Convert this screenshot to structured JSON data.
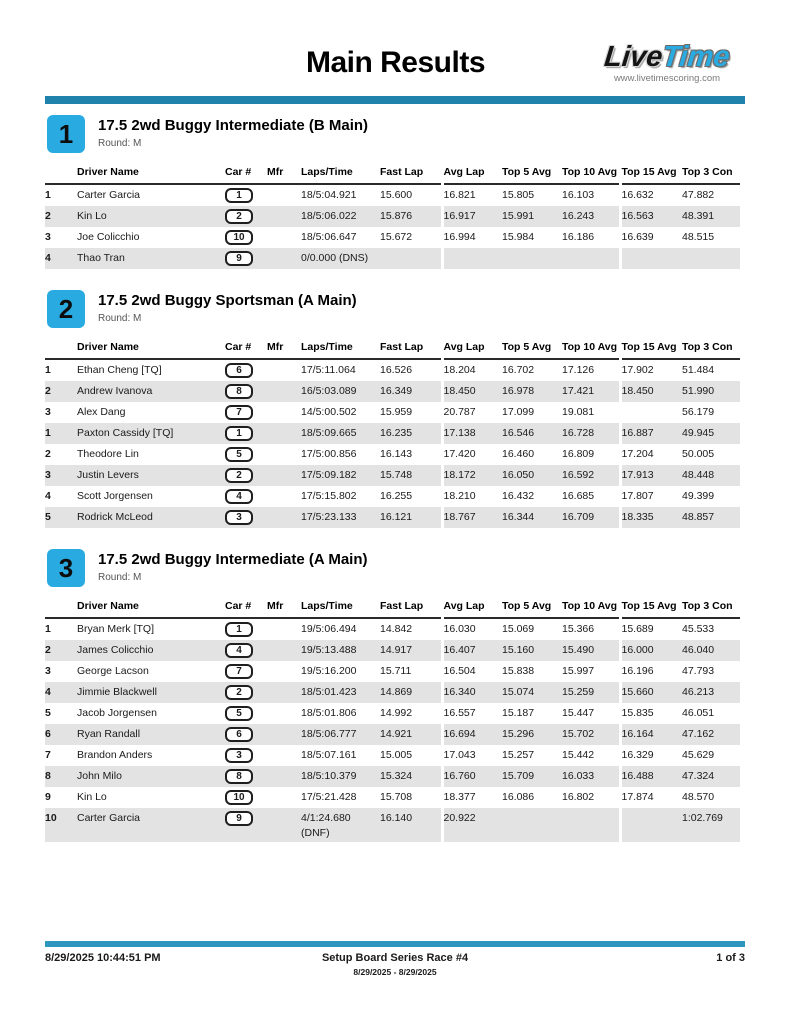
{
  "page": {
    "title": "Main Results",
    "logo": {
      "live": "Live",
      "time": "Time",
      "url": "www.livetimescoring.com"
    },
    "footer": {
      "timestamp": "8/29/2025 10:44:51 PM",
      "event": "Setup Board Series Race #4",
      "dates": "8/29/2025 - 8/29/2025",
      "page_number": "1 of 3"
    }
  },
  "colors": {
    "accent": "#29ABE2",
    "bar": "#1E82AC",
    "footer_bar": "#2E96BE",
    "row_shade": "#E3E3E3"
  },
  "columns": [
    "Driver Name",
    "Car #",
    "Mfr",
    "Laps/Time",
    "Fast Lap",
    "Avg Lap",
    "Top 5 Avg",
    "Top 10 Avg",
    "Top 15 Avg",
    "Top 3 Con"
  ],
  "sections": [
    {
      "number": "1",
      "title": "17.5 2wd Buggy Intermediate (B Main)",
      "round_label": "Round:",
      "round_value": "M",
      "rows": [
        {
          "pos": "1",
          "driver": "Carter Garcia",
          "car": "1",
          "mfr": "",
          "laps_time": "18/5:04.921",
          "fast": "15.600",
          "avg": "16.821",
          "top5": "15.805",
          "top10": "16.103",
          "top15": "16.632",
          "top3con": "47.882"
        },
        {
          "pos": "2",
          "driver": "Kin Lo",
          "car": "2",
          "mfr": "",
          "laps_time": "18/5:06.022",
          "fast": "15.876",
          "avg": "16.917",
          "top5": "15.991",
          "top10": "16.243",
          "top15": "16.563",
          "top3con": "48.391"
        },
        {
          "pos": "3",
          "driver": "Joe Colicchio",
          "car": "10",
          "mfr": "",
          "laps_time": "18/5:06.647",
          "fast": "15.672",
          "avg": "16.994",
          "top5": "15.984",
          "top10": "16.186",
          "top15": "16.639",
          "top3con": "48.515"
        },
        {
          "pos": "4",
          "driver": "Thao Tran",
          "car": "9",
          "mfr": "",
          "laps_time": "0/0.000 (DNS)",
          "fast": "",
          "avg": "",
          "top5": "",
          "top10": "",
          "top15": "",
          "top3con": ""
        }
      ]
    },
    {
      "number": "2",
      "title": "17.5 2wd Buggy Sportsman  (A Main)",
      "round_label": "Round:",
      "round_value": "M",
      "rows": [
        {
          "pos": "1",
          "driver": "Ethan Cheng [TQ]",
          "car": "6",
          "mfr": "",
          "laps_time": "17/5:11.064",
          "fast": "16.526",
          "avg": "18.204",
          "top5": "16.702",
          "top10": "17.126",
          "top15": "17.902",
          "top3con": "51.484"
        },
        {
          "pos": "2",
          "driver": "Andrew Ivanova",
          "car": "8",
          "mfr": "",
          "laps_time": "16/5:03.089",
          "fast": "16.349",
          "avg": "18.450",
          "top5": "16.978",
          "top10": "17.421",
          "top15": "18.450",
          "top3con": "51.990"
        },
        {
          "pos": "3",
          "driver": "Alex Dang",
          "car": "7",
          "mfr": "",
          "laps_time": "14/5:00.502",
          "fast": "15.959",
          "avg": "20.787",
          "top5": "17.099",
          "top10": "19.081",
          "top15": "",
          "top3con": "56.179"
        },
        {
          "pos": "1",
          "driver": "Paxton Cassidy [TQ]",
          "car": "1",
          "mfr": "",
          "laps_time": "18/5:09.665",
          "fast": "16.235",
          "avg": "17.138",
          "top5": "16.546",
          "top10": "16.728",
          "top15": "16.887",
          "top3con": "49.945"
        },
        {
          "pos": "2",
          "driver": "Theodore Lin",
          "car": "5",
          "mfr": "",
          "laps_time": "17/5:00.856",
          "fast": "16.143",
          "avg": "17.420",
          "top5": "16.460",
          "top10": "16.809",
          "top15": "17.204",
          "top3con": "50.005"
        },
        {
          "pos": "3",
          "driver": "Justin Levers",
          "car": "2",
          "mfr": "",
          "laps_time": "17/5:09.182",
          "fast": "15.748",
          "avg": "18.172",
          "top5": "16.050",
          "top10": "16.592",
          "top15": "17.913",
          "top3con": "48.448"
        },
        {
          "pos": "4",
          "driver": "Scott Jorgensen",
          "car": "4",
          "mfr": "",
          "laps_time": "17/5:15.802",
          "fast": "16.255",
          "avg": "18.210",
          "top5": "16.432",
          "top10": "16.685",
          "top15": "17.807",
          "top3con": "49.399"
        },
        {
          "pos": "5",
          "driver": "Rodrick McLeod",
          "car": "3",
          "mfr": "",
          "laps_time": "17/5:23.133",
          "fast": "16.121",
          "avg": "18.767",
          "top5": "16.344",
          "top10": "16.709",
          "top15": "18.335",
          "top3con": "48.857"
        }
      ]
    },
    {
      "number": "3",
      "title": "17.5 2wd Buggy Intermediate (A Main)",
      "round_label": "Round:",
      "round_value": "M",
      "rows": [
        {
          "pos": "1",
          "driver": "Bryan Merk [TQ]",
          "car": "1",
          "mfr": "",
          "laps_time": "19/5:06.494",
          "fast": "14.842",
          "avg": "16.030",
          "top5": "15.069",
          "top10": "15.366",
          "top15": "15.689",
          "top3con": "45.533"
        },
        {
          "pos": "2",
          "driver": "James Colicchio",
          "car": "4",
          "mfr": "",
          "laps_time": "19/5:13.488",
          "fast": "14.917",
          "avg": "16.407",
          "top5": "15.160",
          "top10": "15.490",
          "top15": "16.000",
          "top3con": "46.040"
        },
        {
          "pos": "3",
          "driver": "George Lacson",
          "car": "7",
          "mfr": "",
          "laps_time": "19/5:16.200",
          "fast": "15.711",
          "avg": "16.504",
          "top5": "15.838",
          "top10": "15.997",
          "top15": "16.196",
          "top3con": "47.793"
        },
        {
          "pos": "4",
          "driver": "Jimmie Blackwell",
          "car": "2",
          "mfr": "",
          "laps_time": "18/5:01.423",
          "fast": "14.869",
          "avg": "16.340",
          "top5": "15.074",
          "top10": "15.259",
          "top15": "15.660",
          "top3con": "46.213"
        },
        {
          "pos": "5",
          "driver": "Jacob Jorgensen",
          "car": "5",
          "mfr": "",
          "laps_time": "18/5:01.806",
          "fast": "14.992",
          "avg": "16.557",
          "top5": "15.187",
          "top10": "15.447",
          "top15": "15.835",
          "top3con": "46.051"
        },
        {
          "pos": "6",
          "driver": "Ryan Randall",
          "car": "6",
          "mfr": "",
          "laps_time": "18/5:06.777",
          "fast": "14.921",
          "avg": "16.694",
          "top5": "15.296",
          "top10": "15.702",
          "top15": "16.164",
          "top3con": "47.162"
        },
        {
          "pos": "7",
          "driver": "Brandon Anders",
          "car": "3",
          "mfr": "",
          "laps_time": "18/5:07.161",
          "fast": "15.005",
          "avg": "17.043",
          "top5": "15.257",
          "top10": "15.442",
          "top15": "16.329",
          "top3con": "45.629"
        },
        {
          "pos": "8",
          "driver": "John Milo",
          "car": "8",
          "mfr": "",
          "laps_time": "18/5:10.379",
          "fast": "15.324",
          "avg": "16.760",
          "top5": "15.709",
          "top10": "16.033",
          "top15": "16.488",
          "top3con": "47.324"
        },
        {
          "pos": "9",
          "driver": "Kin Lo",
          "car": "10",
          "mfr": "",
          "laps_time": "17/5:21.428",
          "fast": "15.708",
          "avg": "18.377",
          "top5": "16.086",
          "top10": "16.802",
          "top15": "17.874",
          "top3con": "48.570"
        },
        {
          "pos": "10",
          "driver": "Carter Garcia",
          "car": "9",
          "mfr": "",
          "laps_time": "4/1:24.680",
          "laps_note": "(DNF)",
          "fast": "16.140",
          "avg": "20.922",
          "top5": "",
          "top10": "",
          "top15": "",
          "top3con": "1:02.769"
        }
      ]
    }
  ]
}
